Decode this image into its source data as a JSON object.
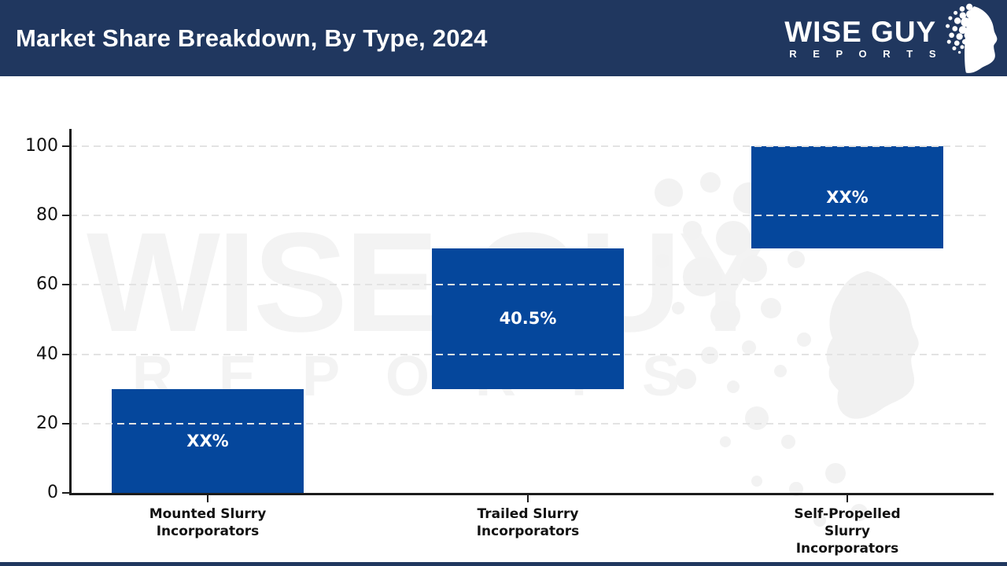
{
  "header": {
    "title": "Market Share Breakdown, By Type, 2024",
    "logo": {
      "name": "Wise Guy Reports",
      "line1": "WISE GUY",
      "line2": "R E P O R T S"
    },
    "bg_color": "#20375f"
  },
  "chart_data": {
    "type": "bar",
    "variant": "floating-segment-bars",
    "title": "Market Share Breakdown, By Type, 2024",
    "categories": [
      "Mounted Slurry Incorporators",
      "Trailed Slurry Incorporators",
      "Self-Propelled Slurry Incorporators"
    ],
    "bars": [
      {
        "category": "Mounted Slurry Incorporators",
        "lines": [
          "Mounted Slurry",
          "Incorporators"
        ],
        "start": 0,
        "end": 30,
        "label": "XX%"
      },
      {
        "category": "Trailed Slurry Incorporators",
        "lines": [
          "Trailed Slurry",
          "Incorporators"
        ],
        "start": 30,
        "end": 70.5,
        "label": "40.5%"
      },
      {
        "category": "Self-Propelled Slurry Incorporators",
        "lines": [
          "Self-Propelled",
          "Slurry",
          "Incorporators"
        ],
        "start": 70.5,
        "end": 100,
        "label": "XX%"
      }
    ],
    "yticks": [
      0,
      20,
      40,
      60,
      80,
      100
    ],
    "ylim": [
      0,
      105
    ],
    "xlabel": "",
    "ylabel": "",
    "grid": "horizontal-dashed-over-bars",
    "legend": "none",
    "colors": {
      "bar": "#05479c",
      "grid": "#e3e3e3",
      "axis": "#1c1c1c",
      "bar_label": "#ffffff",
      "header_bg": "#20375f",
      "watermark": "#f3f3f3"
    },
    "watermark": {
      "line1": "WISE GUY",
      "line2": "R E P O R T S"
    }
  }
}
